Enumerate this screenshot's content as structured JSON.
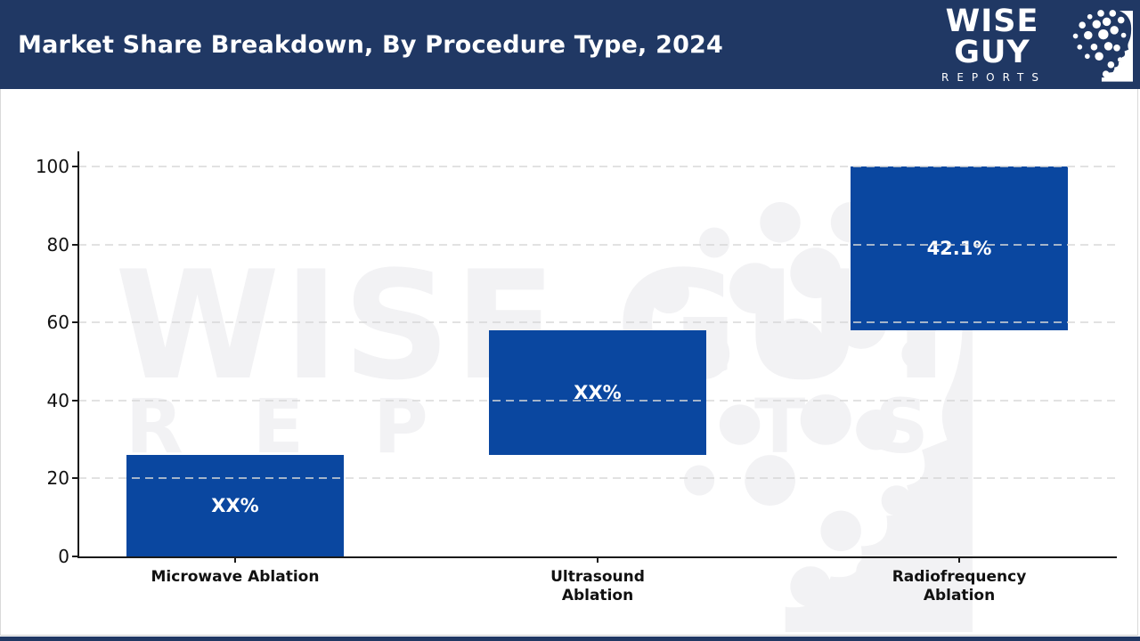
{
  "header": {
    "title": "Market Share Breakdown, By Procedure Type, 2024",
    "logo": {
      "primary": "WISE GUY",
      "secondary": "REPORTS"
    }
  },
  "watermark": {
    "primary": "WISE GUY",
    "secondary": "REPORTS"
  },
  "chart_data": {
    "type": "bar",
    "subtype": "floating-segment-percentage",
    "title": "Market Share Breakdown, By Procedure Type, 2024",
    "categories": [
      "Microwave Ablation",
      "Ultrasound Ablation",
      "Radiofrequency Ablation"
    ],
    "category_lines": [
      [
        "Microwave Ablation"
      ],
      [
        "Ultrasound",
        "Ablation"
      ],
      [
        "Radiofrequency",
        "Ablation"
      ]
    ],
    "bars": [
      {
        "category": "Microwave Ablation",
        "start": 0,
        "end": 26,
        "implied_height": 26,
        "label": "XX%"
      },
      {
        "category": "Ultrasound Ablation",
        "start": 26,
        "end": 57.9,
        "implied_height": 31.9,
        "label": "XX%"
      },
      {
        "category": "Radiofrequency Ablation",
        "start": 57.9,
        "end": 100,
        "implied_height": 42.1,
        "label": "42.1%"
      }
    ],
    "ylim": [
      0,
      100
    ],
    "yticks": [
      0,
      20,
      40,
      60,
      80,
      100
    ],
    "xlabel": "",
    "ylabel": "",
    "grid": "horizontal-dashed",
    "legend": "none"
  },
  "colors": {
    "header_bg": "#203864",
    "footer_bg": "#203864",
    "bar_fill": "#0A47A0",
    "bar_label": "#FFFFFF",
    "grid_line": "#D8D8D8",
    "axis_line": "#1A1A1A",
    "watermark": "#F2F2F4",
    "title_text": "#FFFFFF"
  }
}
